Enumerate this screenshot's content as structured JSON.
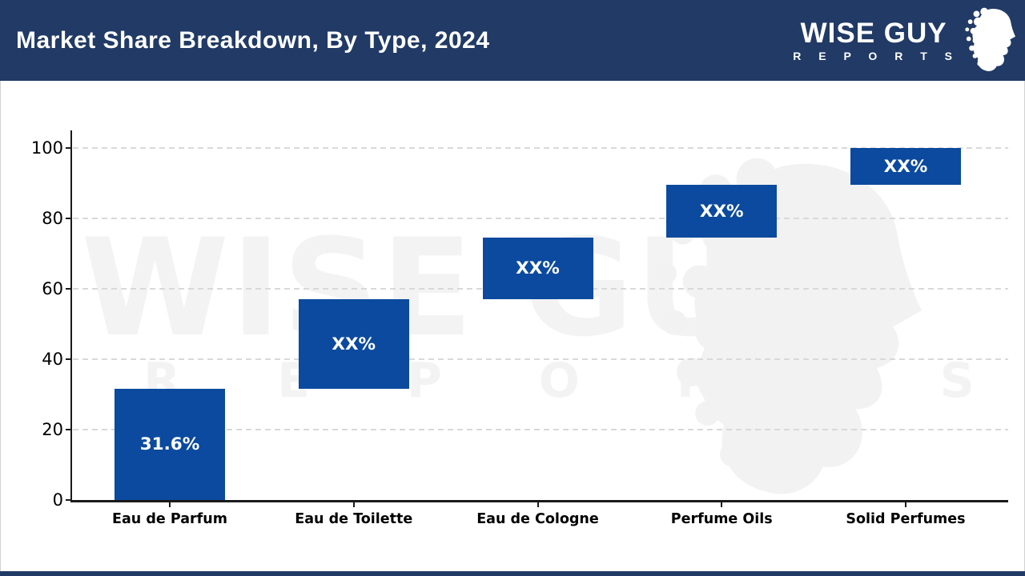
{
  "header": {
    "title": "Market Share Breakdown, By Type, 2024"
  },
  "logo": {
    "line1": "WISE GUY",
    "line2": "R E P O R T S",
    "head_icon": "dotted-head-profile"
  },
  "watermark": {
    "line1": "WISE GUY",
    "line2": "R E P O R T S",
    "head_icon": "dotted-head-profile"
  },
  "colors": {
    "header_bg": "#213a66",
    "footer_bg": "#213a66",
    "bar": "#0b4a9e",
    "bar_label": "#ffffff",
    "grid": "#d9d9d9",
    "axis": "#1a1a1a",
    "watermark": "#f3f3f3"
  },
  "chart_data": {
    "type": "bar",
    "subtype": "waterfall",
    "title": "Market Share Breakdown, By Type, 2024",
    "categories": [
      "Eau de Parfum",
      "Eau de Toilette",
      "Eau de Cologne",
      "Perfume Oils",
      "Solid Perfumes"
    ],
    "segments": [
      {
        "category": "Eau de Parfum",
        "start": 0,
        "end": 31.6,
        "label": "31.6%"
      },
      {
        "category": "Eau de Toilette",
        "start": 31.6,
        "end": 57,
        "label": "XX%"
      },
      {
        "category": "Eau de Cologne",
        "start": 57,
        "end": 74.5,
        "label": "XX%"
      },
      {
        "category": "Perfume Oils",
        "start": 74.5,
        "end": 89.5,
        "label": "XX%"
      },
      {
        "category": "Solid Perfumes",
        "start": 89.5,
        "end": 100,
        "label": "XX%"
      }
    ],
    "y_ticks": [
      0,
      20,
      40,
      60,
      80,
      100
    ],
    "ylim": [
      0,
      105
    ],
    "xlabel": "",
    "ylabel": "",
    "grid": "horizontal-dashed",
    "legend": "none"
  }
}
